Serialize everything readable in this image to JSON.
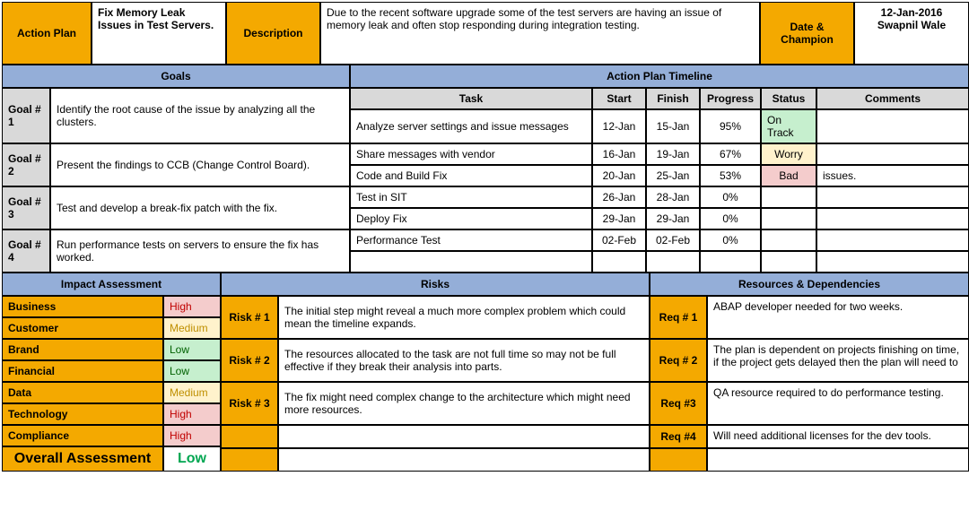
{
  "header": {
    "action_plan_label": "Action Plan",
    "plan_title": "Fix Memory Leak Issues in Test Servers.",
    "description_label": "Description",
    "description_text": "Due to the recent software upgrade some of the test servers are having an issue of memory leak and often stop responding during integration testing.",
    "date_champion_label": "Date & Champion",
    "date": "12-Jan-2016",
    "champion": "Swapnil Wale"
  },
  "section_labels": {
    "goals": "Goals",
    "timeline": "Action Plan Timeline",
    "impact": "Impact Assessment",
    "risks": "Risks",
    "resources": "Resources & Dependencies",
    "task": "Task",
    "start": "Start",
    "finish": "Finish",
    "progress": "Progress",
    "status": "Status",
    "comments": "Comments",
    "overall": "Overall Assessment"
  },
  "goals": [
    {
      "id": "Goal # 1",
      "text": "Identify the root cause of the issue by analyzing all the clusters."
    },
    {
      "id": "Goal # 2",
      "text": "Present the findings to CCB (Change Control Board)."
    },
    {
      "id": "Goal # 3",
      "text": "Test and develop a break-fix patch with the fix."
    },
    {
      "id": "Goal # 4",
      "text": "Run performance tests on servers to ensure the fix has worked."
    }
  ],
  "timeline": [
    {
      "task": "Analyze server settings and issue messages",
      "start": "12-Jan",
      "finish": "15-Jan",
      "progress": "95%",
      "status": "On Track",
      "status_class": "status-green",
      "comments": ""
    },
    {
      "task": "Share messages with vendor",
      "start": "16-Jan",
      "finish": "19-Jan",
      "progress": "67%",
      "status": "Worry",
      "status_class": "status-yellow",
      "comments": ""
    },
    {
      "task": "Code and Build Fix",
      "start": "20-Jan",
      "finish": "25-Jan",
      "progress": "53%",
      "status": "Bad",
      "status_class": "status-red",
      "comments": "issues."
    },
    {
      "task": "Test in SIT",
      "start": "26-Jan",
      "finish": "28-Jan",
      "progress": "0%",
      "status": "",
      "status_class": "white",
      "comments": ""
    },
    {
      "task": "Deploy Fix",
      "start": "29-Jan",
      "finish": "29-Jan",
      "progress": "0%",
      "status": "",
      "status_class": "white",
      "comments": ""
    },
    {
      "task": "Performance Test",
      "start": "02-Feb",
      "finish": "02-Feb",
      "progress": "0%",
      "status": "",
      "status_class": "white",
      "comments": ""
    },
    {
      "task": "",
      "start": "",
      "finish": "",
      "progress": "",
      "status": "",
      "status_class": "white",
      "comments": ""
    }
  ],
  "impact": [
    {
      "cat": "Business",
      "val": "High",
      "cls": "pink"
    },
    {
      "cat": "Customer",
      "val": "Medium",
      "cls": "yellow"
    },
    {
      "cat": "Brand",
      "val": "Low",
      "cls": "green"
    },
    {
      "cat": "Financial",
      "val": "Low",
      "cls": "green"
    },
    {
      "cat": "Data",
      "val": "Medium",
      "cls": "yellow"
    },
    {
      "cat": "Technology",
      "val": "High",
      "cls": "pink"
    },
    {
      "cat": "Compliance",
      "val": "High",
      "cls": "pink"
    }
  ],
  "risks": [
    {
      "id": "Risk # 1",
      "text": "The initial step might reveal a much more complex problem which could mean the timeline expands."
    },
    {
      "id": "Risk # 2",
      "text": "The resources allocated to the task are not full time so may not be full effective if they break their analysis into parts."
    },
    {
      "id": "Risk # 3",
      "text": "The fix might need complex change to the architecture which might need more resources."
    }
  ],
  "reqs": [
    {
      "id": "Req # 1",
      "text": "ABAP developer needed for two weeks."
    },
    {
      "id": "Req # 2",
      "text": "The plan is dependent on projects finishing on time, if the project gets delayed then the plan will need to"
    },
    {
      "id": "Req #3",
      "text": "QA resource required to do performance testing."
    },
    {
      "id": "Req #4",
      "text": "Will need additional licenses for the dev tools."
    }
  ],
  "overall": {
    "label": "Overall Assessment",
    "value": "Low"
  },
  "colors": {
    "orange": "#f4a900",
    "blue": "#94aed8",
    "grey": "#d9d9d9",
    "pink": "#f4cccc",
    "yellow": "#fff2cc",
    "green": "#c6efce",
    "text_red": "#c00000",
    "text_amber": "#bf8f00",
    "text_green": "#006100"
  }
}
